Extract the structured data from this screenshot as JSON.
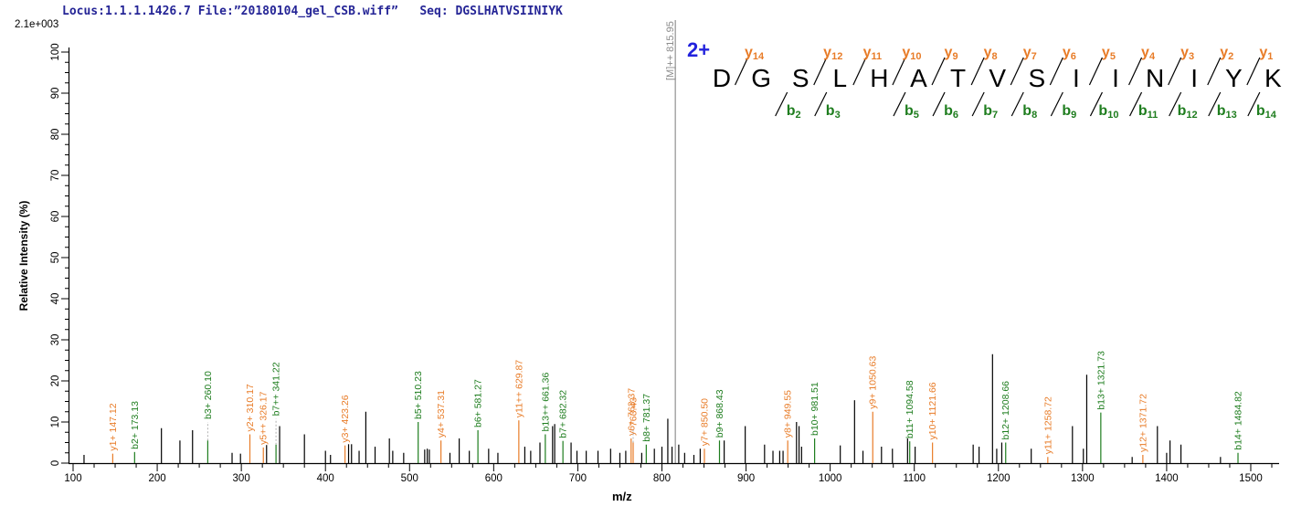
{
  "header": {
    "locus_line": "Locus:1.1.1.1426.7 File:”20180104_gel_CSB.wiff”   Seq: DGSLHATVSIINIYK",
    "max_intensity": "2.1e+003"
  },
  "colors": {
    "y_ion": "#e87c28",
    "b_ion": "#1e7d1e",
    "noise_peak": "#000000",
    "header_text": "#252596",
    "charge_label": "#2222dd",
    "precursor_line": "#999999",
    "precursor_text": "#8c8c8c",
    "axis": "#000000"
  },
  "chart_data": {
    "type": "bar",
    "subtype": "mass-spectrum-stick-plot",
    "xlabel": "m/z",
    "ylabel": "Relative  Intensity (%)",
    "x_axis": {
      "min": 94,
      "max": 1534,
      "major_step": 100,
      "minor_step": 25,
      "tick_labels": [
        100,
        200,
        300,
        400,
        500,
        600,
        700,
        800,
        900,
        1000,
        1100,
        1200,
        1300,
        1400,
        1500
      ]
    },
    "y_axis": {
      "min": 0,
      "max": 100,
      "major_step": 10,
      "minor_step": 2.5,
      "tick_labels": [
        0,
        10,
        20,
        30,
        40,
        50,
        60,
        70,
        80,
        90,
        100
      ]
    },
    "precursor": {
      "label": "[M]++ 815.95",
      "mz": 815.95,
      "charge_label": "2+"
    },
    "sequence": {
      "residues": [
        "D",
        "G",
        "S",
        "L",
        "H",
        "A",
        "T",
        "V",
        "S",
        "I",
        "I",
        "N",
        "I",
        "Y",
        "K"
      ],
      "y_ions": [
        {
          "n": 14,
          "after": 1
        },
        {
          "n": 12,
          "after": 3
        },
        {
          "n": 11,
          "after": 4
        },
        {
          "n": 10,
          "after": 5
        },
        {
          "n": 9,
          "after": 6
        },
        {
          "n": 8,
          "after": 7
        },
        {
          "n": 7,
          "after": 8
        },
        {
          "n": 6,
          "after": 9
        },
        {
          "n": 5,
          "after": 10
        },
        {
          "n": 4,
          "after": 11
        },
        {
          "n": 3,
          "after": 12
        },
        {
          "n": 2,
          "after": 13
        },
        {
          "n": 1,
          "after": 14
        }
      ],
      "b_ions": [
        {
          "n": 2,
          "after": 2
        },
        {
          "n": 3,
          "after": 3
        },
        {
          "n": 5,
          "after": 5
        },
        {
          "n": 6,
          "after": 6
        },
        {
          "n": 7,
          "after": 7
        },
        {
          "n": 8,
          "after": 8
        },
        {
          "n": 9,
          "after": 9
        },
        {
          "n": 10,
          "after": 10
        },
        {
          "n": 11,
          "after": 11
        },
        {
          "n": 12,
          "after": 12
        },
        {
          "n": 13,
          "after": 13
        },
        {
          "n": 14,
          "after": 14
        }
      ]
    },
    "peaks": [
      {
        "mz": 113,
        "h": 2
      },
      {
        "mz": 147.12,
        "h": 2.3,
        "type": "y",
        "label": "y1+ 147.12"
      },
      {
        "mz": 173.13,
        "h": 2.7,
        "type": "b",
        "label": "b2+ 173.13"
      },
      {
        "mz": 205,
        "h": 8.5
      },
      {
        "mz": 227,
        "h": 5.5
      },
      {
        "mz": 242,
        "h": 8
      },
      {
        "mz": 260.1,
        "h": 5.5,
        "type": "b",
        "label": "b3+ 260.10",
        "label_h": 10
      },
      {
        "mz": 289,
        "h": 2.5
      },
      {
        "mz": 299,
        "h": 2.3
      },
      {
        "mz": 310.17,
        "h": 7,
        "type": "y",
        "label": "y2+ 310.17"
      },
      {
        "mz": 326.17,
        "h": 3.8,
        "type": "y",
        "label": "y5++ 326.17"
      },
      {
        "mz": 330,
        "h": 4.4
      },
      {
        "mz": 341.22,
        "h": 4.5,
        "type": "b",
        "label": "b7++ 341.22",
        "label_h": 10.8
      },
      {
        "mz": 345.5,
        "h": 9
      },
      {
        "mz": 375,
        "h": 7
      },
      {
        "mz": 400,
        "h": 3
      },
      {
        "mz": 406,
        "h": 2
      },
      {
        "mz": 423.26,
        "h": 4.3,
        "type": "y",
        "label": "y3+ 423.26"
      },
      {
        "mz": 427.5,
        "h": 4.6
      },
      {
        "mz": 431,
        "h": 4.6
      },
      {
        "mz": 440,
        "h": 3
      },
      {
        "mz": 448,
        "h": 12.5
      },
      {
        "mz": 459,
        "h": 4
      },
      {
        "mz": 476,
        "h": 6
      },
      {
        "mz": 480,
        "h": 3
      },
      {
        "mz": 493,
        "h": 2.5
      },
      {
        "mz": 510.23,
        "h": 10,
        "type": "b",
        "label": "b5+ 510.23"
      },
      {
        "mz": 518,
        "h": 3.3
      },
      {
        "mz": 521,
        "h": 3.5
      },
      {
        "mz": 523.5,
        "h": 3.3
      },
      {
        "mz": 537.31,
        "h": 5.5,
        "type": "y",
        "label": "y4+ 537.31"
      },
      {
        "mz": 548,
        "h": 2.5
      },
      {
        "mz": 559,
        "h": 6
      },
      {
        "mz": 571,
        "h": 3
      },
      {
        "mz": 581.27,
        "h": 8,
        "type": "b",
        "label": "b6+ 581.27"
      },
      {
        "mz": 594,
        "h": 3.5
      },
      {
        "mz": 605,
        "h": 2.5
      },
      {
        "mz": 629.87,
        "h": 10.4,
        "type": "y",
        "label": "y11++ 629.87"
      },
      {
        "mz": 637,
        "h": 4
      },
      {
        "mz": 644,
        "h": 3
      },
      {
        "mz": 655,
        "h": 5
      },
      {
        "mz": 661.36,
        "h": 7,
        "type": "b",
        "label": "b13++ 661.36"
      },
      {
        "mz": 670,
        "h": 9
      },
      {
        "mz": 672.5,
        "h": 9.5
      },
      {
        "mz": 682.32,
        "h": 5.4,
        "type": "b",
        "label": "b7+ 682.32"
      },
      {
        "mz": 692,
        "h": 5
      },
      {
        "mz": 699,
        "h": 3
      },
      {
        "mz": 710,
        "h": 3
      },
      {
        "mz": 724,
        "h": 3
      },
      {
        "mz": 739,
        "h": 3.5
      },
      {
        "mz": 750,
        "h": 2.5
      },
      {
        "mz": 757,
        "h": 3
      },
      {
        "mz": 763.37,
        "h": 6,
        "type": "y",
        "label": "y6+ 763.37"
      },
      {
        "mz": 765.8,
        "h": 5,
        "type": "y",
        "label": "763.43",
        "label_h": 8.2
      },
      {
        "mz": 776,
        "h": 2.5
      },
      {
        "mz": 781.37,
        "h": 4.5,
        "type": "b",
        "label": "b8+ 781.37"
      },
      {
        "mz": 791,
        "h": 3.5
      },
      {
        "mz": 800,
        "h": 4
      },
      {
        "mz": 807,
        "h": 10.8
      },
      {
        "mz": 812,
        "h": 4
      },
      {
        "mz": 820,
        "h": 4.5
      },
      {
        "mz": 827,
        "h": 2.5
      },
      {
        "mz": 838,
        "h": 2
      },
      {
        "mz": 845.5,
        "h": 3.5
      },
      {
        "mz": 850.5,
        "h": 3.5,
        "type": "y",
        "label": "y7+ 850.50"
      },
      {
        "mz": 868.43,
        "h": 5.5,
        "type": "b",
        "label": "b9+ 868.43"
      },
      {
        "mz": 874,
        "h": 5.5
      },
      {
        "mz": 899,
        "h": 9
      },
      {
        "mz": 922,
        "h": 4.5
      },
      {
        "mz": 932,
        "h": 3
      },
      {
        "mz": 940,
        "h": 3
      },
      {
        "mz": 944,
        "h": 3
      },
      {
        "mz": 949.55,
        "h": 5.5,
        "type": "y",
        "label": "y8+ 949.55"
      },
      {
        "mz": 960,
        "h": 10
      },
      {
        "mz": 963,
        "h": 9
      },
      {
        "mz": 966,
        "h": 4
      },
      {
        "mz": 981.51,
        "h": 6,
        "type": "b",
        "label": "b10+ 981.51"
      },
      {
        "mz": 1012,
        "h": 4.3
      },
      {
        "mz": 1029,
        "h": 15.3
      },
      {
        "mz": 1039,
        "h": 3
      },
      {
        "mz": 1050.63,
        "h": 12.5,
        "type": "y",
        "label": "y9+ 1050.63"
      },
      {
        "mz": 1061,
        "h": 4
      },
      {
        "mz": 1074,
        "h": 3.5
      },
      {
        "mz": 1092,
        "h": 6
      },
      {
        "mz": 1094.58,
        "h": 5.3,
        "type": "b",
        "label": "b11+ 1094.58"
      },
      {
        "mz": 1101,
        "h": 4
      },
      {
        "mz": 1121.66,
        "h": 5,
        "type": "y",
        "label": "y10+ 1121.66"
      },
      {
        "mz": 1170,
        "h": 4.5
      },
      {
        "mz": 1177,
        "h": 4
      },
      {
        "mz": 1193,
        "h": 26.5
      },
      {
        "mz": 1198,
        "h": 3.5
      },
      {
        "mz": 1204,
        "h": 5
      },
      {
        "mz": 1208.66,
        "h": 5,
        "type": "b",
        "label": "b12+ 1208.66"
      },
      {
        "mz": 1239,
        "h": 3.5
      },
      {
        "mz": 1258.72,
        "h": 1.5,
        "type": "y",
        "label": "y11+ 1258.72"
      },
      {
        "mz": 1288,
        "h": 9
      },
      {
        "mz": 1301,
        "h": 3.5
      },
      {
        "mz": 1305,
        "h": 21.5
      },
      {
        "mz": 1321.73,
        "h": 12.3,
        "type": "b",
        "label": "b13+ 1321.73"
      },
      {
        "mz": 1359,
        "h": 1.5
      },
      {
        "mz": 1371.72,
        "h": 2,
        "type": "y",
        "label": "y12+ 1371.72"
      },
      {
        "mz": 1389,
        "h": 9
      },
      {
        "mz": 1400,
        "h": 2.5
      },
      {
        "mz": 1404,
        "h": 5.5
      },
      {
        "mz": 1417,
        "h": 4.5
      },
      {
        "mz": 1464,
        "h": 1.5
      },
      {
        "mz": 1484.82,
        "h": 2.5,
        "type": "b",
        "label": "b14+ 1484.82"
      }
    ]
  }
}
